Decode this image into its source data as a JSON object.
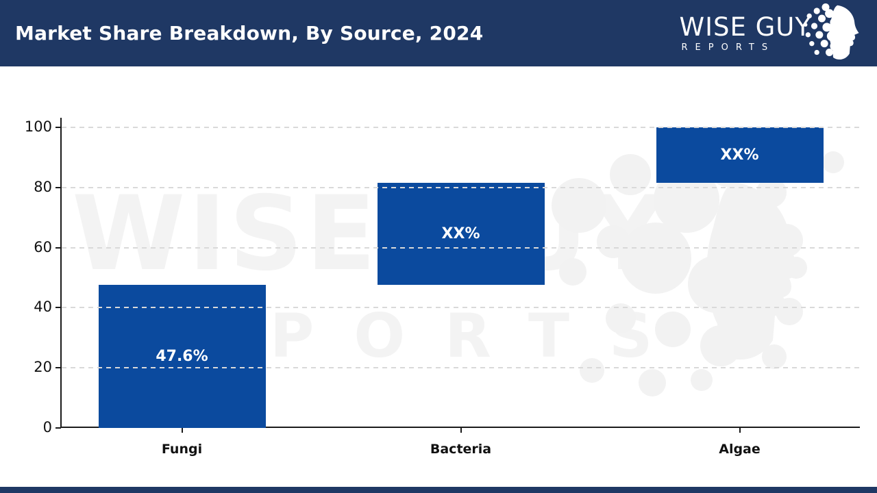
{
  "header": {
    "title": "Market Share Breakdown, By Source, 2024",
    "logo": {
      "brand_top": "WISE GUY",
      "brand_bottom": "REPORTS"
    }
  },
  "watermark": {
    "line1": "WISE GUY",
    "line2": "REPORTS"
  },
  "chart_data": {
    "type": "bar",
    "variant": "waterfall",
    "title": "Market Share Breakdown, By Source, 2024",
    "categories": [
      "Fungi",
      "Bacteria",
      "Algae"
    ],
    "segments": [
      {
        "category": "Fungi",
        "start": 0,
        "end": 47.6,
        "label": "47.6%"
      },
      {
        "category": "Bacteria",
        "start": 47.6,
        "end": 81.6,
        "label": "XX%"
      },
      {
        "category": "Algae",
        "start": 81.6,
        "end": 100,
        "label": "XX%"
      }
    ],
    "yticks": [
      0,
      20,
      40,
      60,
      80,
      100
    ],
    "ylim": [
      0,
      103.2
    ],
    "xlabel": "",
    "ylabel": "",
    "grid": "horizontal-dashed",
    "legend": "none",
    "bar_color": "#0b4a9e",
    "bar_label_color": "#ffffff",
    "axis_color": "#1a1a1a",
    "grid_color": "#d9d9d9"
  },
  "colors": {
    "header_bg": "#1f3864",
    "footer_bg": "#1f3864",
    "page_bg": "#ffffff",
    "title_color": "#ffffff",
    "watermark_color": "#f3f3f3"
  }
}
